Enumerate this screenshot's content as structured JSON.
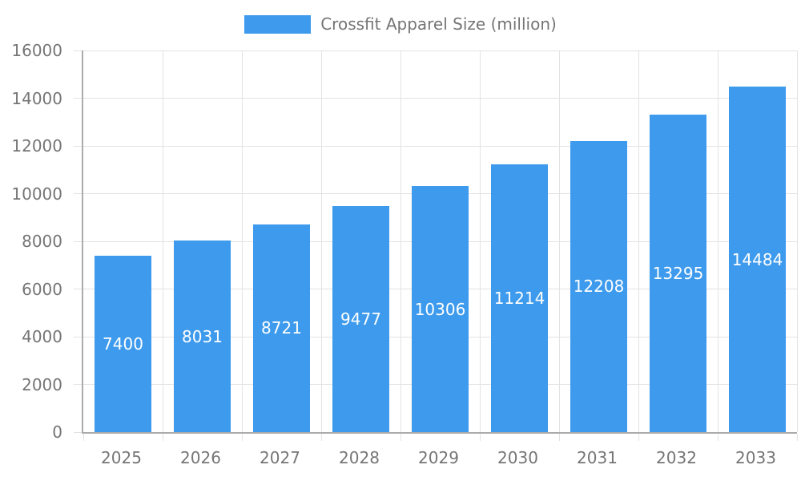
{
  "legend": {
    "label": "Crossfit Apparel Size (million)"
  },
  "chart_data": {
    "type": "bar",
    "title": "Crossfit Apparel Size (million)",
    "series_name": "Crossfit Apparel Size (million)",
    "categories": [
      "2025",
      "2026",
      "2027",
      "2028",
      "2029",
      "2030",
      "2031",
      "2032",
      "2033"
    ],
    "values": [
      7400,
      8031,
      8721,
      9477,
      10306,
      11214,
      12208,
      13295,
      14484
    ],
    "xlabel": "",
    "ylabel": "",
    "ylim": [
      0,
      16000
    ],
    "ytick_step": 2000,
    "ytick_labels": [
      "0",
      "2000",
      "4000",
      "6000",
      "8000",
      "10000",
      "12000",
      "14000",
      "16000"
    ],
    "grid": true,
    "legend_position": "top-center",
    "value_label_position": "inside-center"
  },
  "colors": {
    "bar": "#3D9AEC",
    "text": "#757575",
    "grid": "#E3E3E3",
    "axis": "#ABABAB",
    "bar_label": "#FFFFFF",
    "background": "#FFFFFF"
  }
}
